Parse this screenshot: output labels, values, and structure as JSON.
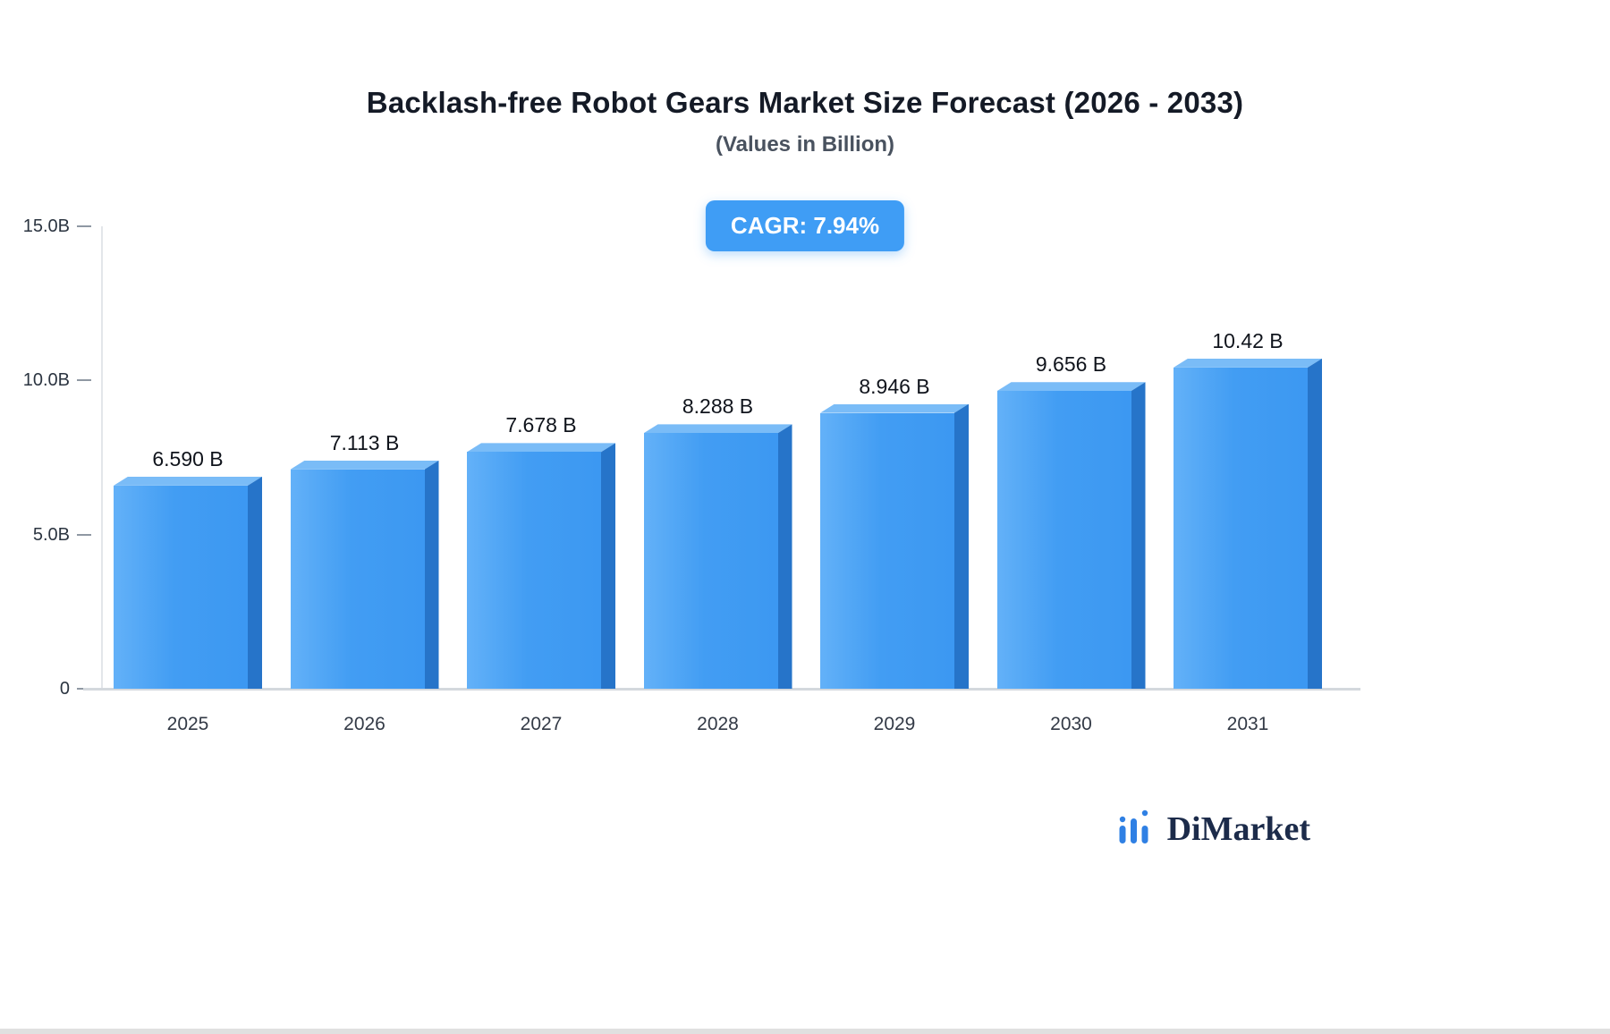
{
  "page": {
    "title": "Backlash-free Robot Gears Market Size Forecast (2026 - 2033)",
    "subtitle": "(Values in Billion)",
    "cagr_badge": "CAGR: 7.94%",
    "brand": "DiMarket"
  },
  "chart_data": {
    "type": "bar",
    "title": "Backlash-free Robot Gears Market Size Forecast (2026 - 2033)",
    "subtitle": "(Values in Billion)",
    "annotation": "CAGR: 7.94%",
    "categories": [
      "2025",
      "2026",
      "2027",
      "2028",
      "2029",
      "2030",
      "2031"
    ],
    "values": [
      6.59,
      7.113,
      7.678,
      8.288,
      8.946,
      9.656,
      10.42
    ],
    "value_labels": [
      "6.590 B",
      "7.113 B",
      "7.678 B",
      "8.288 B",
      "8.946 B",
      "9.656 B",
      "10.42 B"
    ],
    "xlabel": "",
    "ylabel": "",
    "ylim": [
      0,
      15
    ],
    "yticks": [
      {
        "value": 0,
        "label": "0"
      },
      {
        "value": 5,
        "label": "5.0B"
      },
      {
        "value": 10,
        "label": "10.0B"
      },
      {
        "value": 15,
        "label": "15.0B"
      }
    ],
    "grid": "off",
    "legend": "none",
    "bar_color": "#3c98f2",
    "bar_side_color": "#2674c9",
    "bar_top_color": "#7abcf7"
  },
  "colors": {
    "accent": "#3f9df5",
    "badge_bg": "#3f9df5",
    "brand_text": "#1c2b4a",
    "brand_icon": "#2f80e4"
  }
}
